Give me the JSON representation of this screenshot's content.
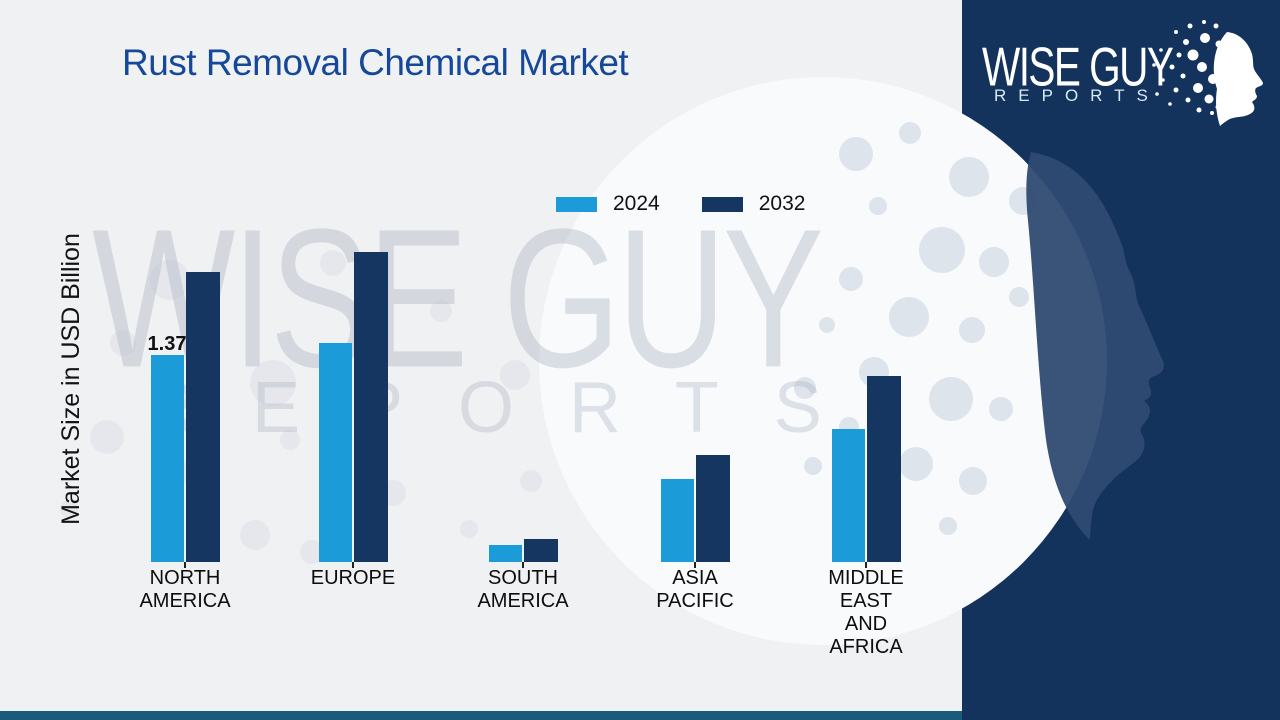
{
  "page": {
    "background_color": "#f0f1f2",
    "bottom_band_color": "#1a5b7c"
  },
  "header": {
    "title": "Rust Removal Chemical Market",
    "title_color": "#15489a"
  },
  "brand": {
    "name": "WISE GUY",
    "tagline": "REPORTS",
    "panel_color": "#14335c",
    "face_icon": "head-profile-dots"
  },
  "watermark": {
    "line1": "WISE GUY",
    "line2": "REPORTS"
  },
  "legend": {
    "items": [
      {
        "label": "2024",
        "color": "#1b9cd9"
      },
      {
        "label": "2032",
        "color": "#153660"
      }
    ]
  },
  "chart_data": {
    "type": "bar",
    "title": "Rust Removal Chemical Market",
    "xlabel": "",
    "ylabel": "Market Size in USD Billion",
    "ylim": [
      0,
      2.2
    ],
    "grid": false,
    "legend_position": "top-right",
    "categories": [
      "NORTH AMERICA",
      "EUROPE",
      "SOUTH AMERICA",
      "ASIA PACIFIC",
      "MIDDLE EAST AND AFRICA"
    ],
    "categories_lines": [
      [
        "NORTH",
        "AMERICA"
      ],
      [
        "EUROPE"
      ],
      [
        "SOUTH",
        "AMERICA"
      ],
      [
        "ASIA",
        "PACIFIC"
      ],
      [
        "MIDDLE",
        "EAST",
        "AND",
        "AFRICA"
      ]
    ],
    "series": [
      {
        "name": "2024",
        "color": "#1b9cd9",
        "values": [
          1.37,
          1.45,
          0.11,
          0.55,
          0.88
        ]
      },
      {
        "name": "2032",
        "color": "#153660",
        "values": [
          1.92,
          2.05,
          0.15,
          0.71,
          1.23
        ]
      }
    ],
    "data_labels": [
      {
        "series": "2024",
        "category": "NORTH AMERICA",
        "text": "1.37"
      }
    ]
  }
}
